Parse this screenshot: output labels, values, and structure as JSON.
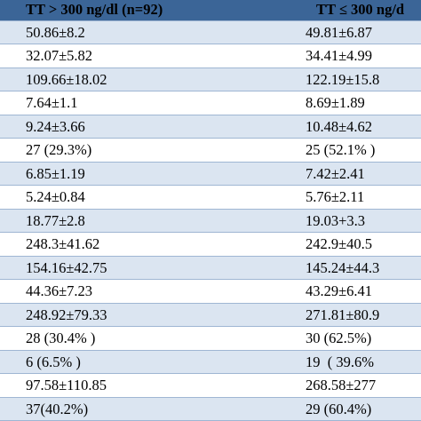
{
  "table": {
    "header": [
      "TT > 300 ng/dl (n=92)",
      "TT ≤ 300 ng/d"
    ],
    "rows": [
      [
        "50.86±8.2",
        "49.81±6.87"
      ],
      [
        "32.07±5.82",
        "34.41±4.99"
      ],
      [
        "109.66±18.02",
        "122.19±15.8"
      ],
      [
        "7.64±1.1",
        "8.69±1.89"
      ],
      [
        "9.24±3.66",
        "10.48±4.62"
      ],
      [
        "27 (29.3%)",
        "25 (52.1% )"
      ],
      [
        "6.85±1.19",
        "7.42±2.41"
      ],
      [
        "5.24±0.84",
        "5.76±2.11"
      ],
      [
        "18.77±2.8",
        "19.03+3.3"
      ],
      [
        "248.3±41.62",
        "242.9±40.5"
      ],
      [
        "154.16±42.75",
        "145.24±44.3"
      ],
      [
        "44.36±7.23",
        "43.29±6.41"
      ],
      [
        "248.92±79.33",
        "271.81±80.9"
      ],
      [
        "28 (30.4% )",
        "30 (62.5%)"
      ],
      [
        "6 (6.5% )",
        "19  ( 39.6%"
      ],
      [
        "97.58±110.85",
        "268.58±277"
      ],
      [
        "37(40.2%)",
        "29 (60.4%)"
      ]
    ]
  }
}
